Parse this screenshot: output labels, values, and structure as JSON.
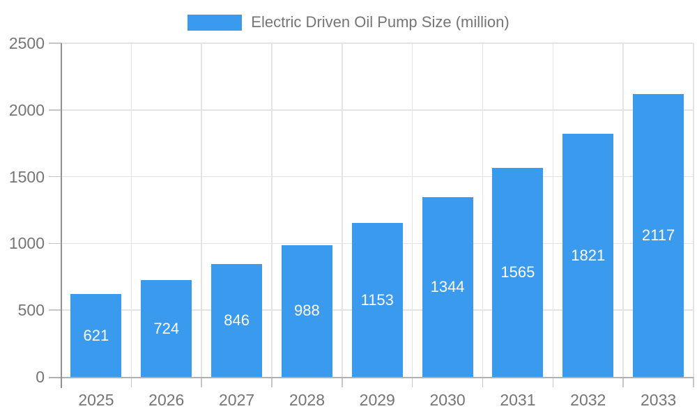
{
  "chart_data": {
    "type": "bar",
    "legend": {
      "position": "top",
      "label": "Electric Driven Oil Pump Size (million)"
    },
    "categories": [
      "2025",
      "2026",
      "2027",
      "2028",
      "2029",
      "2030",
      "2031",
      "2032",
      "2033"
    ],
    "series": [
      {
        "name": "Electric Driven Oil Pump Size (million)",
        "values": [
          621,
          724,
          846,
          988,
          1153,
          1344,
          1565,
          1821,
          2117
        ]
      }
    ],
    "bar_value_labels_shown": true,
    "xlabel": "",
    "ylabel": "",
    "ylim": [
      0,
      2500
    ],
    "yticks": [
      0,
      500,
      1000,
      1500,
      2000,
      2500
    ],
    "grid": true,
    "colors": {
      "bar": "#399aee",
      "bar_value_label": "#ffffff",
      "axis_tick_label": "#757575",
      "legend_text": "#757575",
      "gridline": "#e3e3e3",
      "y_axis_line": "#919191",
      "x_axis_line": "#b0b0b0",
      "tick_mark": "#c6c6c6",
      "background": "#ffffff"
    }
  }
}
